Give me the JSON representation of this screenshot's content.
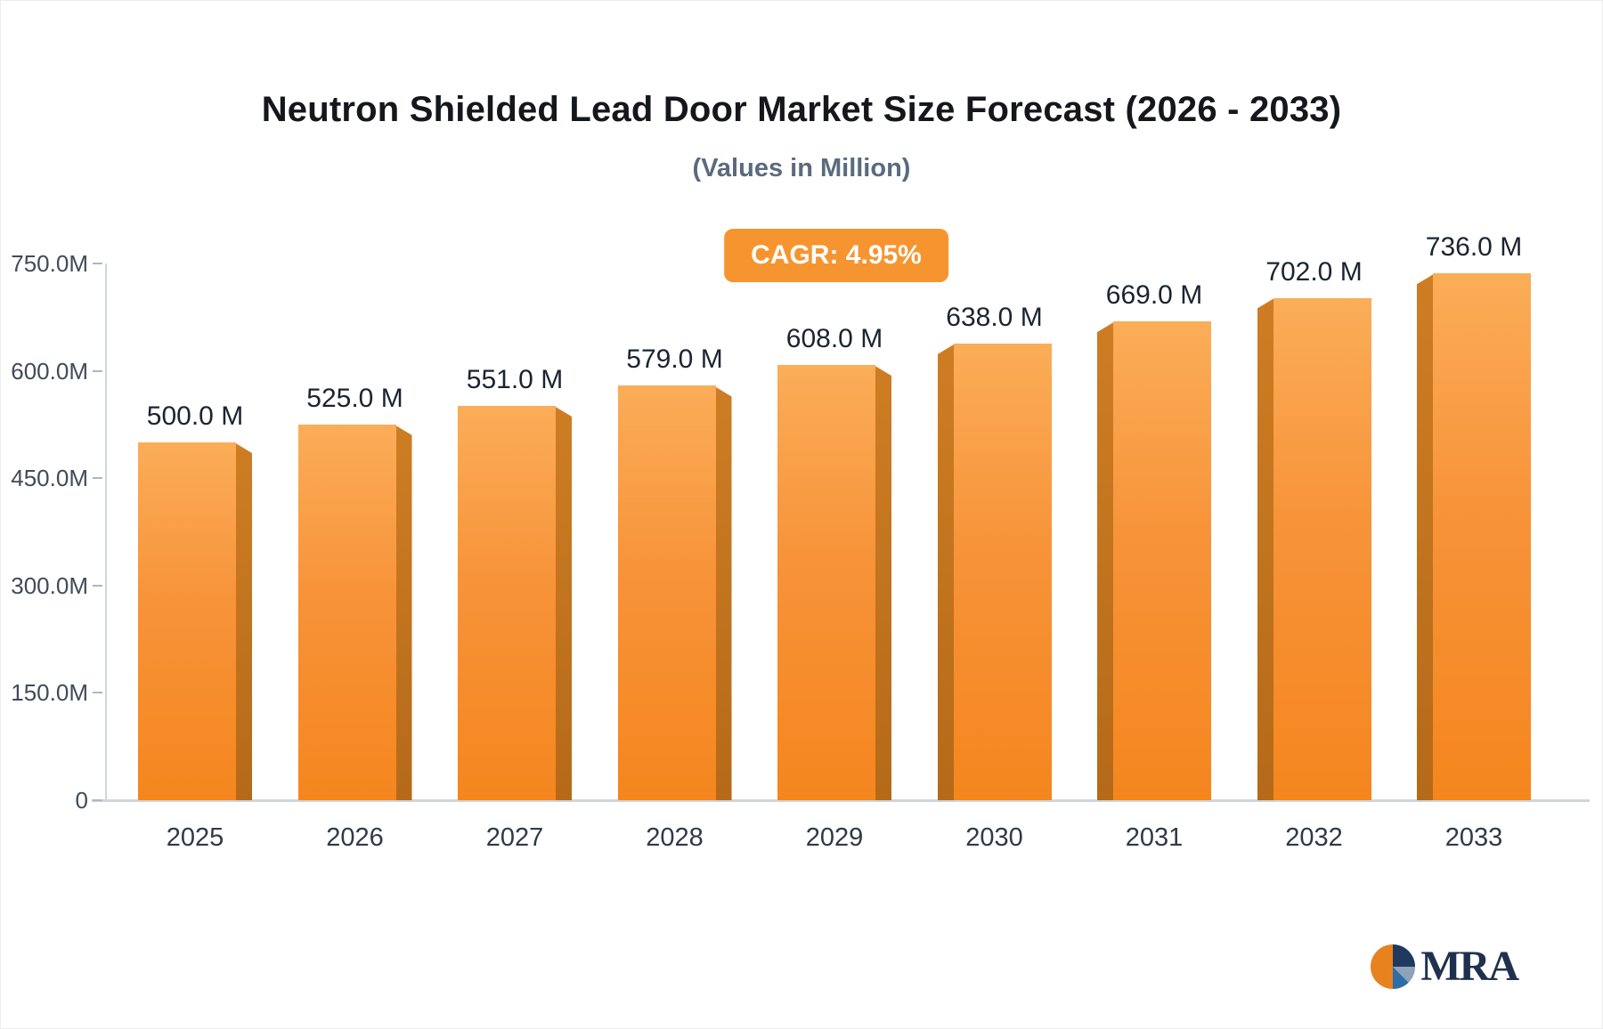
{
  "title": "Neutron Shielded Lead Door Market Size Forecast (2026 - 2033)",
  "subtitle": "(Values in Million)",
  "cagr_badge": "CAGR: 4.95%",
  "logo": {
    "text": "MRA"
  },
  "chart_data": {
    "type": "bar",
    "title": "Neutron Shielded Lead Door Market Size Forecast (2026 - 2033)",
    "categories": [
      "2025",
      "2026",
      "2027",
      "2028",
      "2029",
      "2030",
      "2031",
      "2032",
      "2033"
    ],
    "values": [
      500,
      525,
      551,
      579,
      608,
      638,
      669,
      702,
      736
    ],
    "value_labels": [
      "500.0 M",
      "525.0 M",
      "551.0 M",
      "579.0 M",
      "608.0 M",
      "638.0 M",
      "669.0 M",
      "702.0 M",
      "736.0 M"
    ],
    "xlabel": "",
    "ylabel": "",
    "ylim": [
      0,
      750
    ],
    "y_tick_values": [
      750,
      600,
      450,
      300,
      150,
      0
    ],
    "y_ticks": [
      "750.0M",
      "600.0M",
      "450.0M",
      "300.0M",
      "150.0M",
      "0"
    ],
    "grid": false,
    "legend": false,
    "bar_color_top": "#FBAD58",
    "bar_color_bottom": "#F5861E",
    "bar_side_color": "#B56A19",
    "accent_color": "#F6952F"
  }
}
